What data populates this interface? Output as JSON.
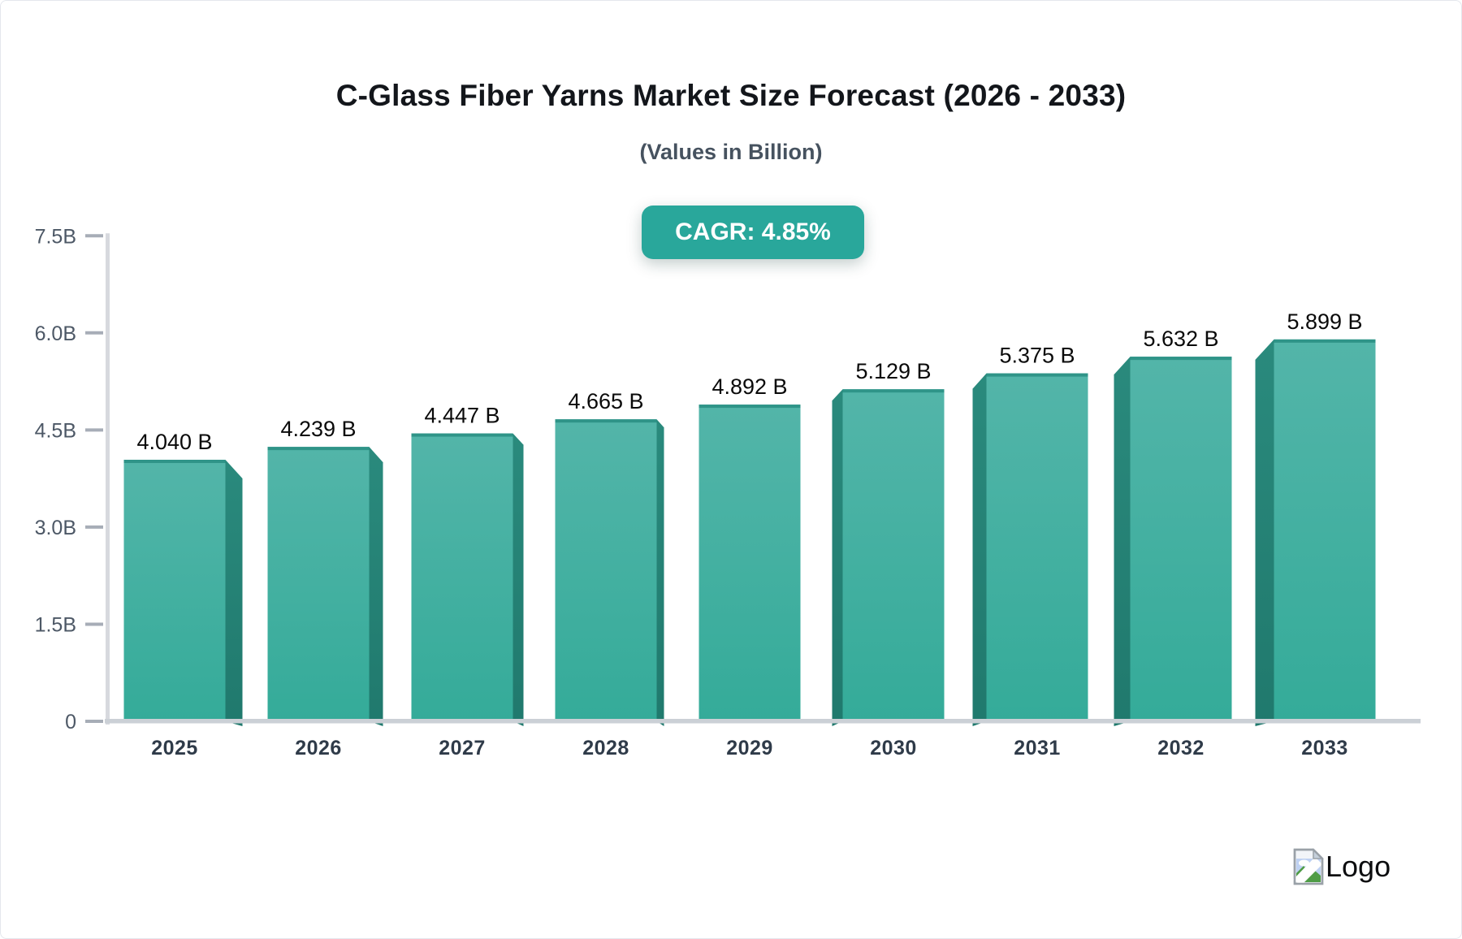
{
  "header": {
    "title": "C-Glass Fiber Yarns Market Size Forecast (2026 - 2033)",
    "subtitle": "(Values in Billion)",
    "cagr_label": "CAGR: 4.85%"
  },
  "chart_data": {
    "type": "bar",
    "title": "C-Glass Fiber Yarns Market Size Forecast (2026 - 2033)",
    "subtitle": "(Values in Billion)",
    "annotation": "CAGR: 4.85%",
    "categories": [
      "2025",
      "2026",
      "2027",
      "2028",
      "2029",
      "2030",
      "2031",
      "2032",
      "2033"
    ],
    "values": [
      4.04,
      4.239,
      4.447,
      4.665,
      4.892,
      5.129,
      5.375,
      5.632,
      5.899
    ],
    "value_labels": [
      "4.040 B",
      "4.239 B",
      "4.447 B",
      "4.665 B",
      "4.892 B",
      "5.129 B",
      "5.375 B",
      "5.632 B",
      "5.899 B"
    ],
    "xlabel": "",
    "ylabel": "",
    "ylim": [
      0,
      7.5
    ],
    "yticks": {
      "labels": [
        "0",
        "1.5B",
        "3.0B",
        "4.5B",
        "6.0B",
        "7.5B"
      ],
      "values": [
        0,
        1.5,
        3.0,
        4.5,
        6.0,
        7.5
      ]
    },
    "grid": false,
    "legend": false,
    "bar_style": "3d-extruded",
    "colors": {
      "bar_face_top": "#53b5a9",
      "bar_face_bottom": "#34ab99",
      "bar_top_edge": "#2f9488",
      "bar_side_dark": "#20796d",
      "bar_side_light": "#2a8a7d",
      "badge_background": "#29a79b",
      "badge_text": "#ffffff",
      "axis_line": "#d7d9de",
      "baseline": "#cbd0d6",
      "tick_dash": "#a7adb7",
      "ytick_text": "#4d5866",
      "xtick_text": "#2f3b49",
      "value_text": "#0a0a0a"
    }
  },
  "logo": {
    "alt_text": "Logo"
  }
}
